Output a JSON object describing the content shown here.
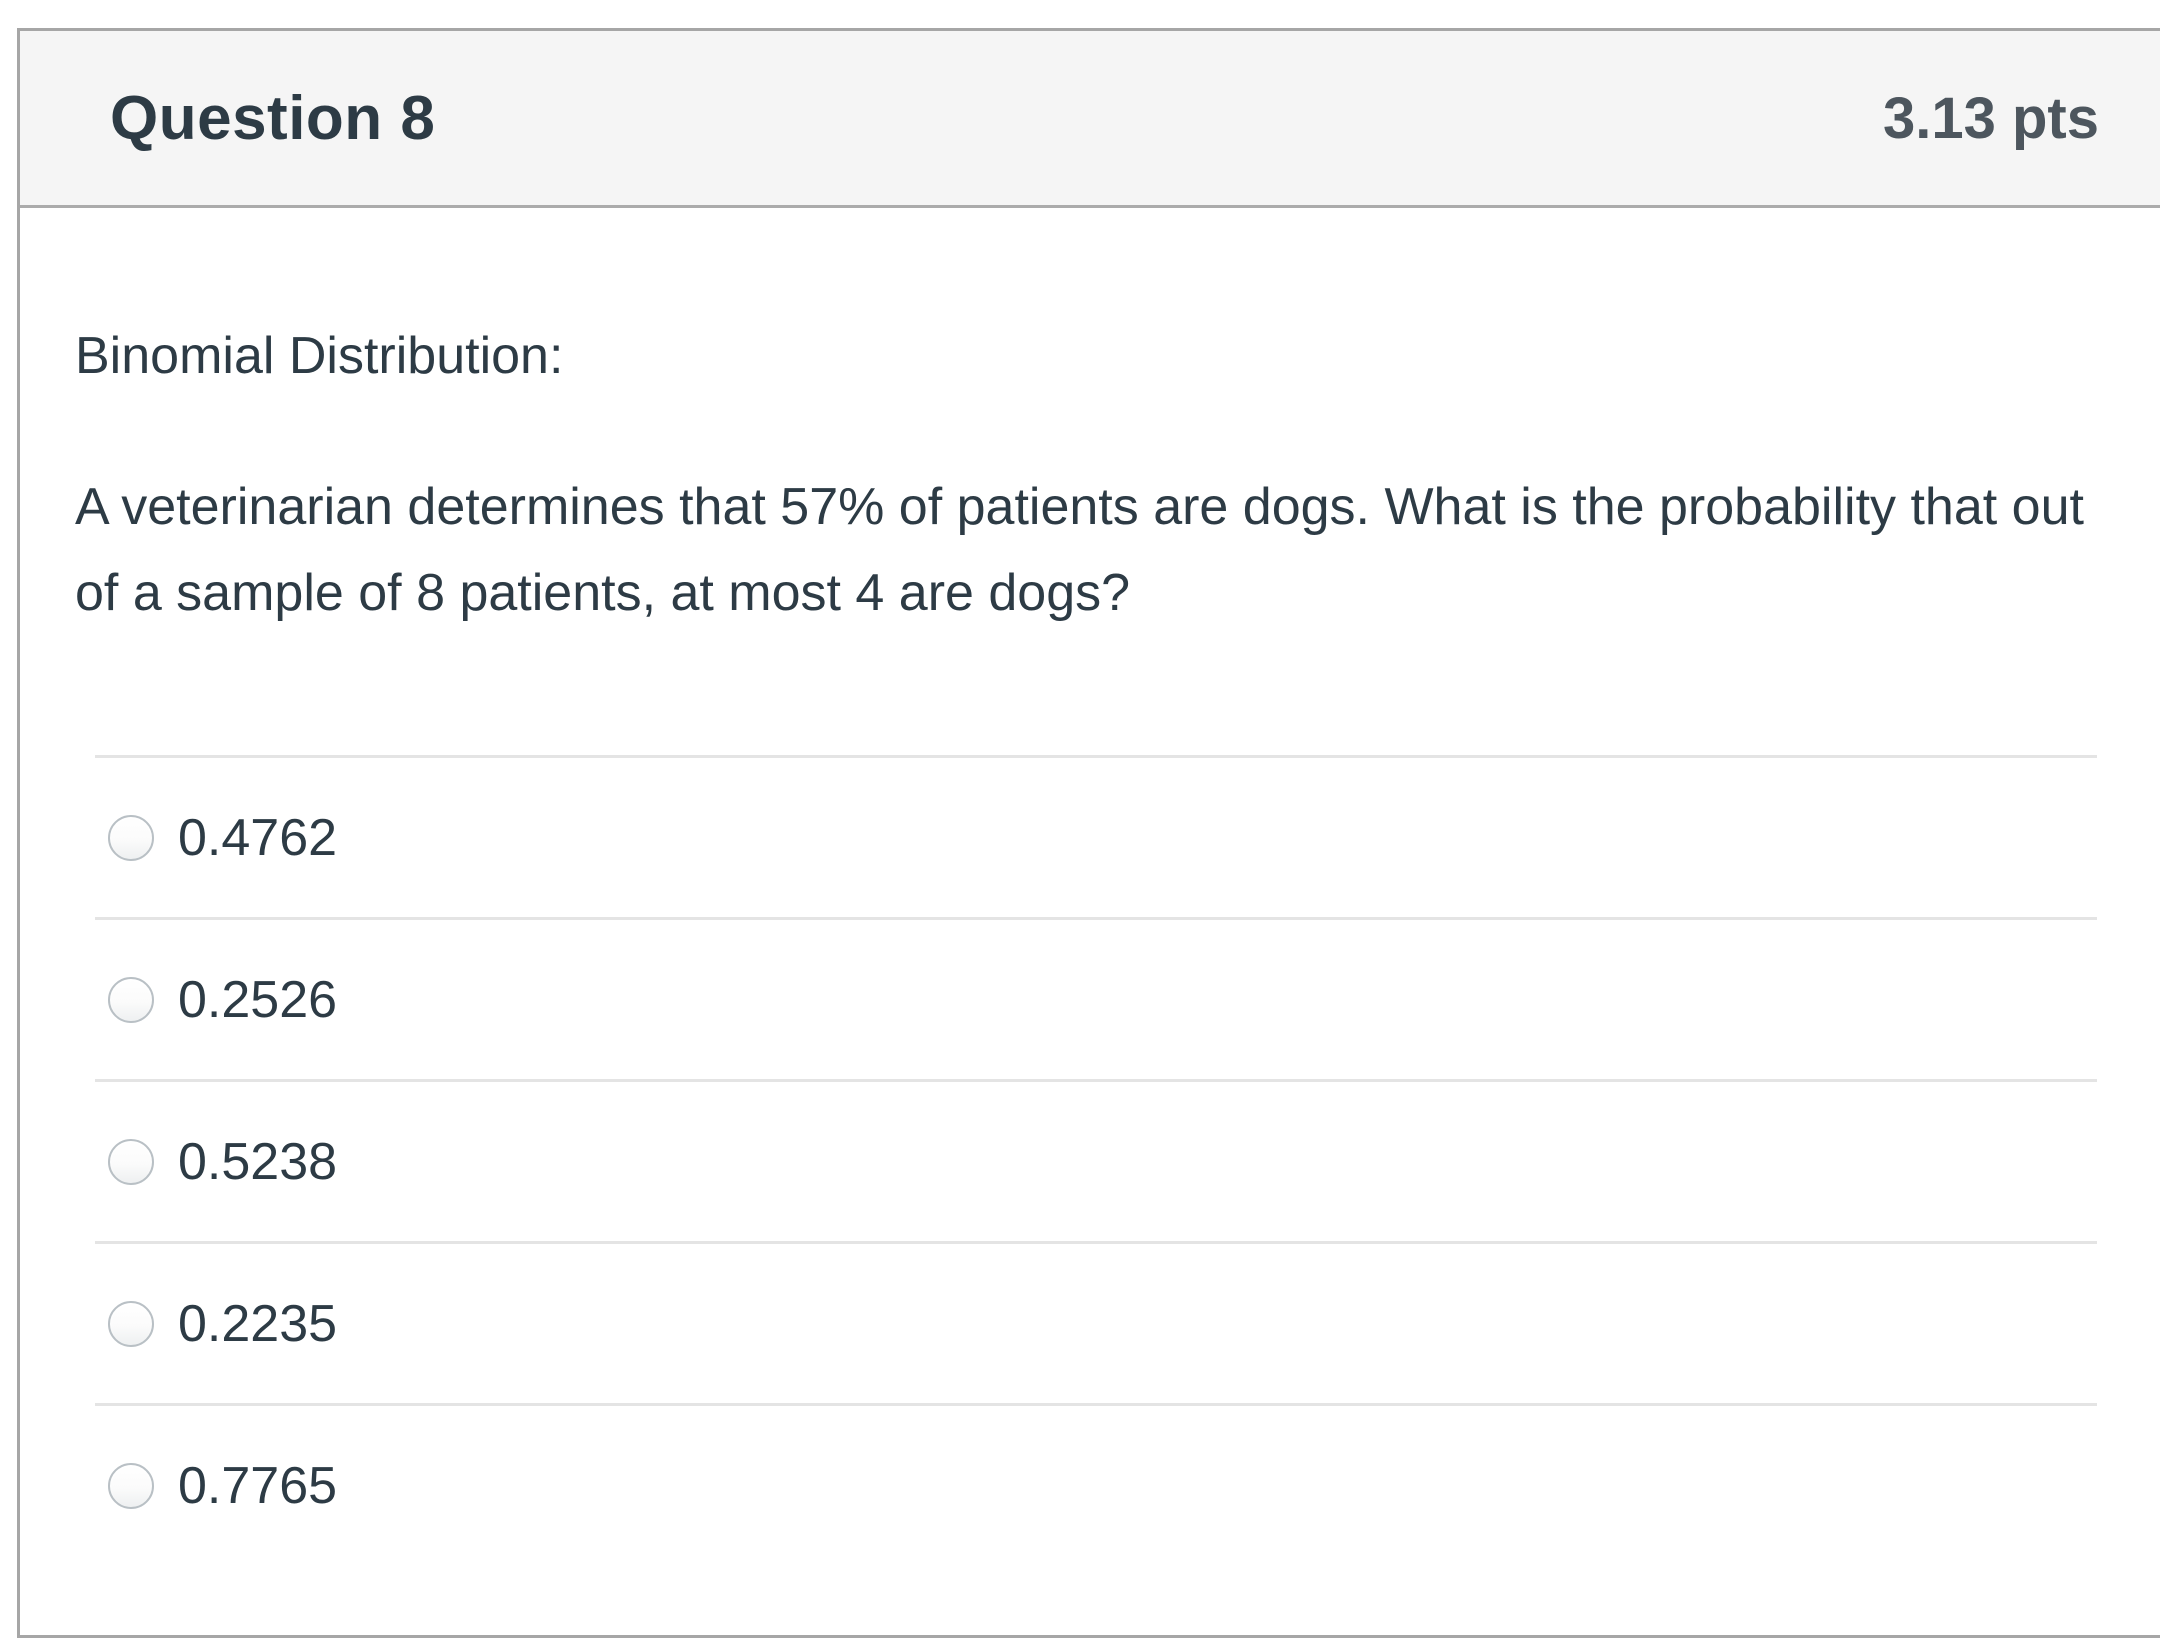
{
  "quiz": {
    "header": {
      "title": "Question 8",
      "points": "3.13 pts"
    },
    "body": {
      "topic": "Binomial Distribution:",
      "prompt": "A veterinarian determines that 57% of patients are dogs. What is the probability that out of a sample of 8 patients, at most 4 are dogs?"
    },
    "options": [
      "0.4762",
      "0.2526",
      "0.5238",
      "0.2235",
      "0.7765"
    ],
    "colors": {
      "header_background": "#f5f5f5",
      "card_border": "#a6a6a6",
      "text": "#2d3b45",
      "points_text": "#4d565e",
      "divider": "#e4e4e4",
      "radio_border": "#b9c0c5"
    }
  }
}
